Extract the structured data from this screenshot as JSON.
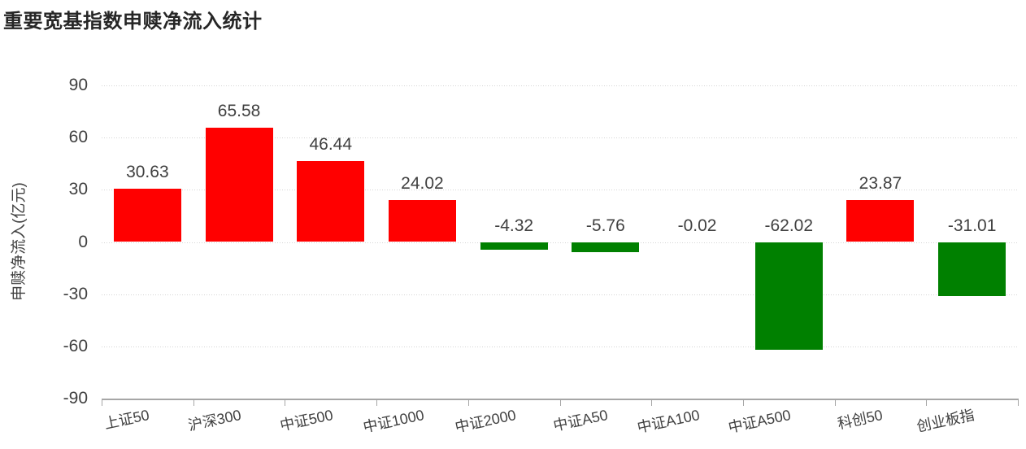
{
  "chart_data": {
    "type": "bar",
    "title": "重要宽基指数申赎净流入统计",
    "ylabel": "申赎净流入(亿元)",
    "xlabel": "",
    "categories": [
      "上证50",
      "沪深300",
      "中证500",
      "中证1000",
      "中证2000",
      "中证A50",
      "中证A100",
      "中证A500",
      "科创50",
      "创业板指"
    ],
    "values": [
      30.63,
      65.58,
      46.44,
      24.02,
      -4.32,
      -5.76,
      -0.02,
      -62.02,
      23.87,
      -31.01
    ],
    "value_labels": [
      "30.63",
      "65.58",
      "46.44",
      "24.02",
      "-4.32",
      "-5.76",
      "-0.02",
      "-62.02",
      "23.87",
      "-31.01"
    ],
    "ytick_labels": [
      "90",
      "60",
      "30",
      "0",
      "-30",
      "-60",
      "-90"
    ],
    "ylim": [
      -90,
      90
    ],
    "ytick_step": 30,
    "grid": "horizontal-dotted",
    "legend": "none",
    "colors": {
      "positive": "#FF0000",
      "negative": "#008000",
      "axis": "#A6A6A6",
      "gridline": "#D4D4D4",
      "label": "#404040",
      "title": "#262626"
    }
  }
}
